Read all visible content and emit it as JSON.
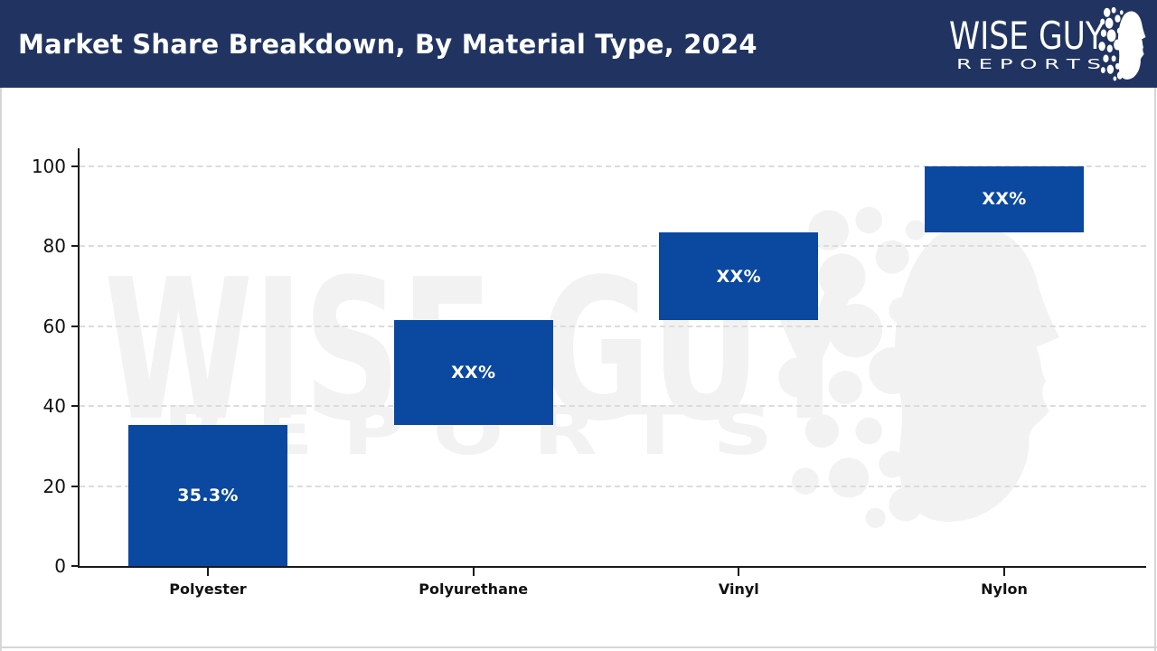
{
  "header": {
    "title": "Market Share Breakdown, By Material Type, 2024",
    "logo": {
      "line1": "WISE GUY",
      "line2": "R E P O R T S"
    }
  },
  "watermark": {
    "line1": "WISE GUY",
    "line2": "R E P O R T S"
  },
  "chart_data": {
    "type": "bar",
    "subtype": "stacked-percentage-waterfall",
    "title": "Market Share Breakdown, By Material Type, 2024",
    "categories": [
      "Polyester",
      "Polyurethane",
      "Vinyl",
      "Nylon"
    ],
    "segments": [
      {
        "category": "Polyester",
        "start": 0,
        "end": 35.3,
        "label": "35.3%"
      },
      {
        "category": "Polyurethane",
        "start": 35.3,
        "end": 61.5,
        "label": "XX%"
      },
      {
        "category": "Vinyl",
        "start": 61.5,
        "end": 83.5,
        "label": "XX%"
      },
      {
        "category": "Nylon",
        "start": 83.5,
        "end": 100,
        "label": "XX%"
      }
    ],
    "yticks": [
      0,
      20,
      40,
      60,
      80,
      100
    ],
    "ylim": [
      0,
      104.5
    ],
    "xlabel": "",
    "ylabel": "",
    "grid": "horizontal-dashed",
    "legend": "none",
    "bar_color": "#0b48a0",
    "bar_label_color": "#ffffff"
  },
  "colors": {
    "header_bg": "#213461",
    "bar": "#0b48a0",
    "grid": "#dcdcdc",
    "axis": "#1a1a1a",
    "watermark": "#f2f2f2",
    "edge": "#d6d6d6"
  }
}
